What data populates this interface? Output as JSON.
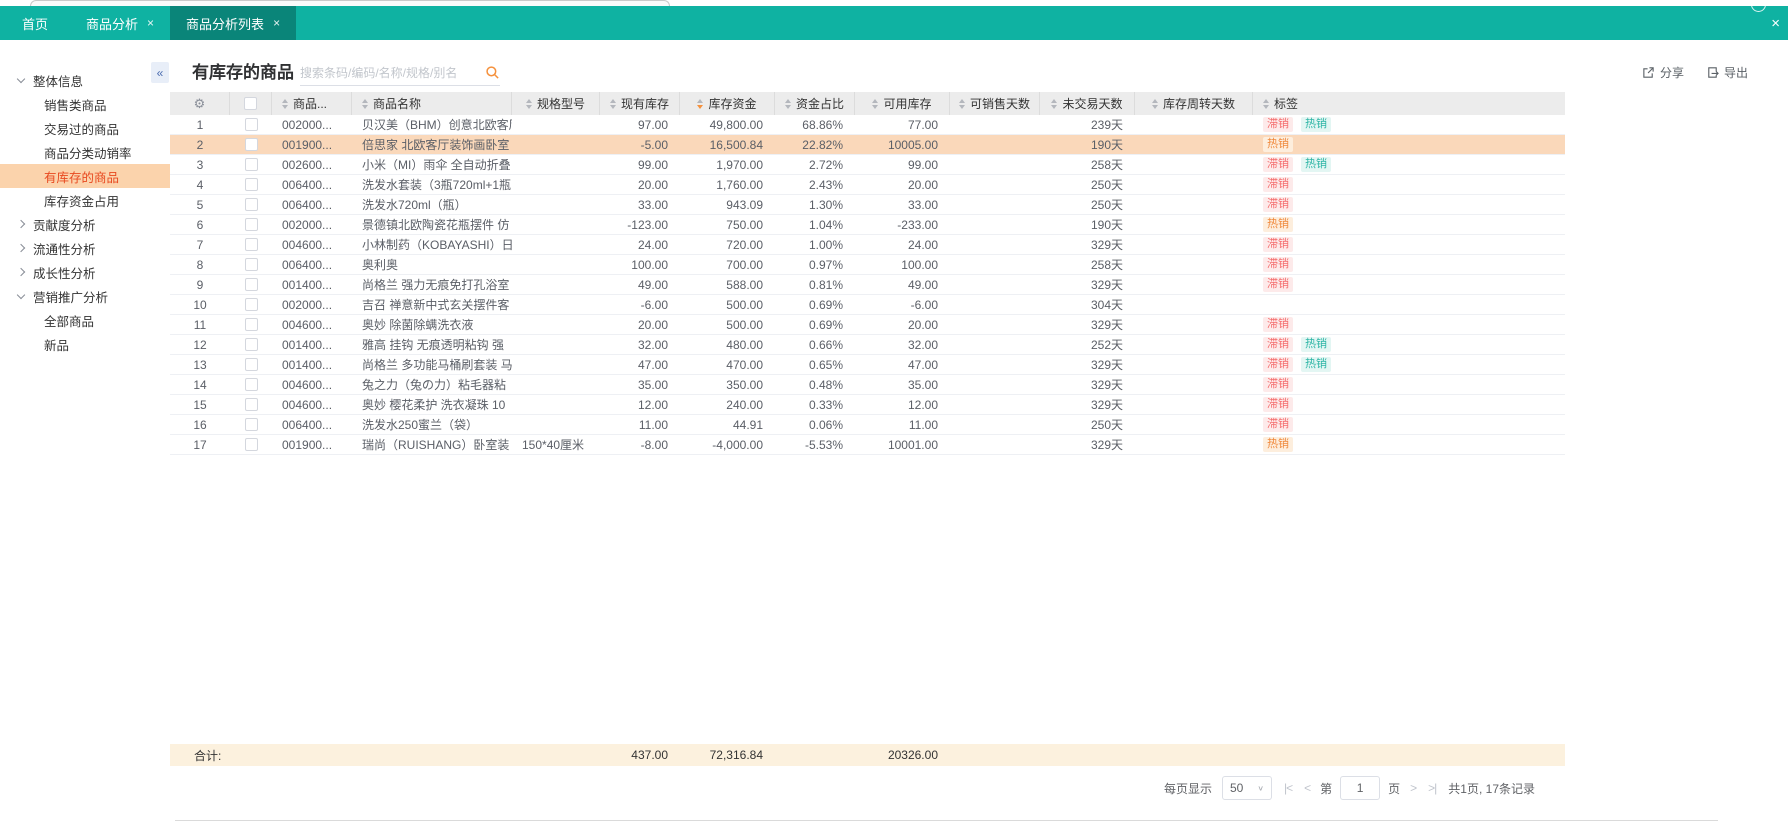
{
  "colors": {
    "topbar": "#0fb2a2",
    "topbar_active": "#0a8579",
    "accent_orange": "#f5913d",
    "selected_bg": "#fbd3ac",
    "selected_text": "#e8491f",
    "row_highlight": "#fad8ba",
    "tag_slow_text": "#f56c6c",
    "tag_slow_bg": "#fdeaea",
    "tag_hot_teal_text": "#2cb5a5",
    "tag_hot_teal_bg": "#e3f6f3",
    "tag_hot_orange_text": "#f0883a",
    "tag_hot_orange_bg": "#fdeedd",
    "totals_bg": "#fcf1de"
  },
  "icons": {
    "gear": "⚙",
    "collapse": "«",
    "tab_close": "×",
    "window_close": "×",
    "select_caret": "∨",
    "first_page": "|<",
    "prev_page": "<",
    "next_page": ">",
    "last_page": ">|"
  },
  "topbar": {
    "tabs": [
      {
        "label": "首页",
        "closable": false,
        "active": false
      },
      {
        "label": "商品分析",
        "closable": true,
        "active": false
      },
      {
        "label": "商品分析列表",
        "closable": true,
        "active": true
      }
    ]
  },
  "sidebar": {
    "items": [
      {
        "label": "整体信息",
        "level": 0,
        "expanded": true
      },
      {
        "label": "销售类商品",
        "level": 1
      },
      {
        "label": "交易过的商品",
        "level": 1
      },
      {
        "label": "商品分类动销率",
        "level": 1
      },
      {
        "label": "有库存的商品",
        "level": 1,
        "selected": true
      },
      {
        "label": "库存资金占用",
        "level": 1
      },
      {
        "label": "贡献度分析",
        "level": 0,
        "expanded": false
      },
      {
        "label": "流通性分析",
        "level": 0,
        "expanded": false
      },
      {
        "label": "成长性分析",
        "level": 0,
        "expanded": false
      },
      {
        "label": "营销推广分析",
        "level": 0,
        "expanded": true
      },
      {
        "label": "全部商品",
        "level": 1
      },
      {
        "label": "新品",
        "level": 1
      }
    ]
  },
  "header": {
    "title": "有库存的商品",
    "search_placeholder": "搜索条码/编码/名称/规格/别名",
    "share_label": "分享",
    "export_label": "导出"
  },
  "table": {
    "columns": [
      {
        "key": "index",
        "label": "",
        "type": "gear"
      },
      {
        "key": "check",
        "label": "",
        "type": "checkbox"
      },
      {
        "key": "code",
        "label": "商品...",
        "sortable": true
      },
      {
        "key": "name",
        "label": "商品名称",
        "sortable": true
      },
      {
        "key": "spec",
        "label": "规格型号",
        "sortable": true
      },
      {
        "key": "stock",
        "label": "现有库存",
        "sortable": true
      },
      {
        "key": "funds",
        "label": "库存资金",
        "sortable": true,
        "sorted": "desc"
      },
      {
        "key": "ratio",
        "label": "资金占比",
        "sortable": true
      },
      {
        "key": "available",
        "label": "可用库存",
        "sortable": true
      },
      {
        "key": "sell_days",
        "label": "可销售天数",
        "sortable": true
      },
      {
        "key": "no_trade_days",
        "label": "未交易天数",
        "sortable": true
      },
      {
        "key": "turnover_days",
        "label": "库存周转天数",
        "sortable": true
      },
      {
        "key": "tags",
        "label": "标签",
        "sortable": true
      }
    ],
    "rows": [
      {
        "index": "1",
        "code": "002000...",
        "name": "贝汉美（BHM）创意北欧客厅",
        "spec": "",
        "stock": "97.00",
        "funds": "49,800.00",
        "ratio": "68.86%",
        "available": "77.00",
        "sell_days": "",
        "no_trade_days": "239天",
        "turnover_days": "",
        "highlight": false,
        "tags": [
          {
            "text": "滞销",
            "type": "slow"
          },
          {
            "text": "热销",
            "type": "hot_teal"
          }
        ]
      },
      {
        "index": "2",
        "code": "001900...",
        "name": "倍思家 北欧客厅装饰画卧室",
        "spec": "",
        "stock": "-5.00",
        "funds": "16,500.84",
        "ratio": "22.82%",
        "available": "10005.00",
        "sell_days": "",
        "no_trade_days": "190天",
        "turnover_days": "",
        "highlight": true,
        "tags": [
          {
            "text": "热销",
            "type": "hot_orange"
          }
        ]
      },
      {
        "index": "3",
        "code": "002600...",
        "name": "小米（MI）雨伞 全自动折叠",
        "spec": "",
        "stock": "99.00",
        "funds": "1,970.00",
        "ratio": "2.72%",
        "available": "99.00",
        "sell_days": "",
        "no_trade_days": "258天",
        "turnover_days": "",
        "highlight": false,
        "tags": [
          {
            "text": "滞销",
            "type": "slow"
          },
          {
            "text": "热销",
            "type": "hot_teal"
          }
        ]
      },
      {
        "index": "4",
        "code": "006400...",
        "name": "洗发水套装（3瓶720ml+1瓶",
        "spec": "",
        "stock": "20.00",
        "funds": "1,760.00",
        "ratio": "2.43%",
        "available": "20.00",
        "sell_days": "",
        "no_trade_days": "250天",
        "turnover_days": "",
        "highlight": false,
        "tags": [
          {
            "text": "滞销",
            "type": "slow"
          }
        ]
      },
      {
        "index": "5",
        "code": "006400...",
        "name": "洗发水720ml（瓶）",
        "spec": "",
        "stock": "33.00",
        "funds": "943.09",
        "ratio": "1.30%",
        "available": "33.00",
        "sell_days": "",
        "no_trade_days": "250天",
        "turnover_days": "",
        "highlight": false,
        "tags": [
          {
            "text": "滞销",
            "type": "slow"
          }
        ]
      },
      {
        "index": "6",
        "code": "002000...",
        "name": "景德镇北欧陶瓷花瓶摆件 仿",
        "spec": "",
        "stock": "-123.00",
        "funds": "750.00",
        "ratio": "1.04%",
        "available": "-233.00",
        "sell_days": "",
        "no_trade_days": "190天",
        "turnover_days": "",
        "highlight": false,
        "tags": [
          {
            "text": "热销",
            "type": "hot_orange"
          }
        ]
      },
      {
        "index": "7",
        "code": "004600...",
        "name": "小林制药（KOBAYASHI）日",
        "spec": "",
        "stock": "24.00",
        "funds": "720.00",
        "ratio": "1.00%",
        "available": "24.00",
        "sell_days": "",
        "no_trade_days": "329天",
        "turnover_days": "",
        "highlight": false,
        "tags": [
          {
            "text": "滞销",
            "type": "slow"
          }
        ]
      },
      {
        "index": "8",
        "code": "006400...",
        "name": "奥利奥",
        "spec": "",
        "stock": "100.00",
        "funds": "700.00",
        "ratio": "0.97%",
        "available": "100.00",
        "sell_days": "",
        "no_trade_days": "258天",
        "turnover_days": "",
        "highlight": false,
        "tags": [
          {
            "text": "滞销",
            "type": "slow"
          }
        ]
      },
      {
        "index": "9",
        "code": "001400...",
        "name": "尚格兰 强力无痕免打孔浴室",
        "spec": "",
        "stock": "49.00",
        "funds": "588.00",
        "ratio": "0.81%",
        "available": "49.00",
        "sell_days": "",
        "no_trade_days": "329天",
        "turnover_days": "",
        "highlight": false,
        "tags": [
          {
            "text": "滞销",
            "type": "slow"
          }
        ]
      },
      {
        "index": "10",
        "code": "002000...",
        "name": "吉召 禅意新中式玄关摆件客",
        "spec": "",
        "stock": "-6.00",
        "funds": "500.00",
        "ratio": "0.69%",
        "available": "-6.00",
        "sell_days": "",
        "no_trade_days": "304天",
        "turnover_days": "",
        "highlight": false,
        "tags": []
      },
      {
        "index": "11",
        "code": "004600...",
        "name": "奥妙 除菌除螨洗衣液",
        "spec": "",
        "stock": "20.00",
        "funds": "500.00",
        "ratio": "0.69%",
        "available": "20.00",
        "sell_days": "",
        "no_trade_days": "329天",
        "turnover_days": "",
        "highlight": false,
        "tags": [
          {
            "text": "滞销",
            "type": "slow"
          }
        ]
      },
      {
        "index": "12",
        "code": "001400...",
        "name": "雅高 挂钩 无痕透明粘钩 强",
        "spec": "",
        "stock": "32.00",
        "funds": "480.00",
        "ratio": "0.66%",
        "available": "32.00",
        "sell_days": "",
        "no_trade_days": "252天",
        "turnover_days": "",
        "highlight": false,
        "tags": [
          {
            "text": "滞销",
            "type": "slow"
          },
          {
            "text": "热销",
            "type": "hot_teal"
          }
        ]
      },
      {
        "index": "13",
        "code": "001400...",
        "name": "尚格兰 多功能马桶刷套装 马",
        "spec": "",
        "stock": "47.00",
        "funds": "470.00",
        "ratio": "0.65%",
        "available": "47.00",
        "sell_days": "",
        "no_trade_days": "329天",
        "turnover_days": "",
        "highlight": false,
        "tags": [
          {
            "text": "滞销",
            "type": "slow"
          },
          {
            "text": "热销",
            "type": "hot_teal"
          }
        ]
      },
      {
        "index": "14",
        "code": "004600...",
        "name": "兔之力（兔の力）粘毛器粘",
        "spec": "",
        "stock": "35.00",
        "funds": "350.00",
        "ratio": "0.48%",
        "available": "35.00",
        "sell_days": "",
        "no_trade_days": "329天",
        "turnover_days": "",
        "highlight": false,
        "tags": [
          {
            "text": "滞销",
            "type": "slow"
          }
        ]
      },
      {
        "index": "15",
        "code": "004600...",
        "name": "奥妙 樱花柔护 洗衣凝珠 10",
        "spec": "",
        "stock": "12.00",
        "funds": "240.00",
        "ratio": "0.33%",
        "available": "12.00",
        "sell_days": "",
        "no_trade_days": "329天",
        "turnover_days": "",
        "highlight": false,
        "tags": [
          {
            "text": "滞销",
            "type": "slow"
          }
        ]
      },
      {
        "index": "16",
        "code": "006400...",
        "name": "洗发水250蜜兰（袋）",
        "spec": "",
        "stock": "11.00",
        "funds": "44.91",
        "ratio": "0.06%",
        "available": "11.00",
        "sell_days": "",
        "no_trade_days": "250天",
        "turnover_days": "",
        "highlight": false,
        "tags": [
          {
            "text": "滞销",
            "type": "slow"
          }
        ]
      },
      {
        "index": "17",
        "code": "001900...",
        "name": "瑞尚（RUISHANG）卧室装",
        "spec": "150*40厘米",
        "stock": "-8.00",
        "funds": "-4,000.00",
        "ratio": "-5.53%",
        "available": "10001.00",
        "sell_days": "",
        "no_trade_days": "329天",
        "turnover_days": "",
        "highlight": false,
        "tags": [
          {
            "text": "热销",
            "type": "hot_orange"
          }
        ]
      }
    ],
    "total_label": "合计:",
    "totals": {
      "stock": "437.00",
      "funds": "72,316.84",
      "available": "20326.00"
    }
  },
  "pagination": {
    "page_size_label": "每页显示",
    "page_size": "50",
    "page_prefix": "第",
    "page_value": "1",
    "page_suffix": "页",
    "summary": "共1页, 17条记录"
  }
}
